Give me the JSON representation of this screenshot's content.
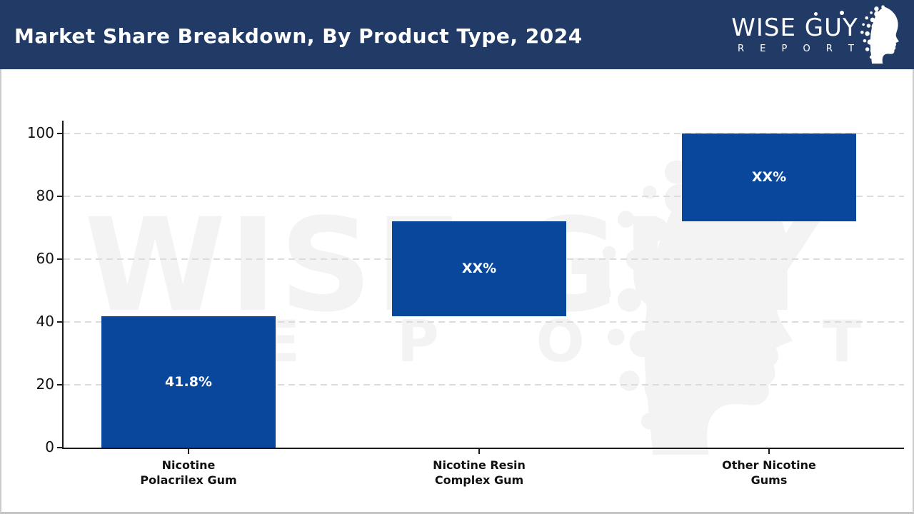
{
  "header": {
    "title": "Market Share Breakdown, By Product Type, 2024",
    "logo": {
      "line1": "WISE GUY",
      "line2": "R E P O R T S"
    }
  },
  "watermark": {
    "line1": "WISE GUY",
    "line2": "R E P O R T S"
  },
  "chart_data": {
    "type": "bar",
    "subtype": "floating-segment-bars",
    "title": "Market Share Breakdown, By Product Type, 2024",
    "categories": [
      "Nicotine|Polacrilex Gum",
      "Nicotine Resin|Complex Gum",
      "Other Nicotine|Gums"
    ],
    "segments": [
      {
        "category": "Nicotine Polacrilex Gum",
        "from": 0,
        "to": 41.8,
        "label": "41.8%"
      },
      {
        "category": "Nicotine Resin Complex Gum",
        "from": 41.8,
        "to": 72,
        "label": "XX%"
      },
      {
        "category": "Other Nicotine Gums",
        "from": 72,
        "to": 100,
        "label": "XX%"
      }
    ],
    "yticks": [
      0,
      20,
      40,
      60,
      80,
      100
    ],
    "ylim": [
      0,
      104
    ],
    "grid": "horizontal dashed",
    "legend": "none",
    "bar_color": "#09479d",
    "bar_label_color": "#ffffff"
  },
  "colors": {
    "header_bg": "#213a66",
    "bar": "#09479d",
    "grid": "#dcdcdc",
    "axis": "#1a1a1a",
    "watermark": "#f3f3f3",
    "frame": "#cbcbcb"
  }
}
